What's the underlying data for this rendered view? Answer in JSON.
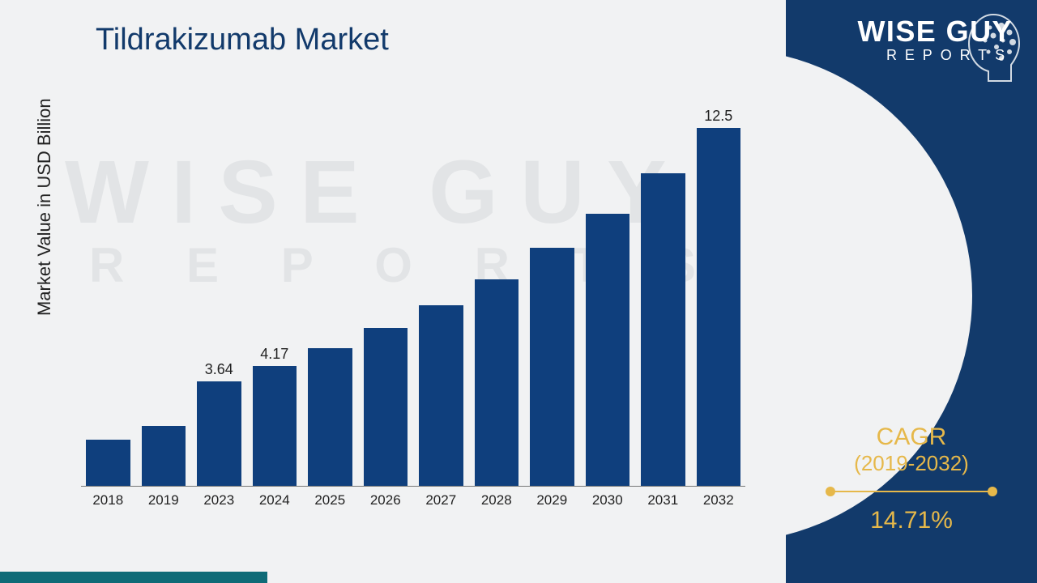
{
  "title": "Tildrakizumab Market",
  "logo": {
    "line1": "WISE GUY",
    "line2": "REPORTS"
  },
  "watermark": {
    "line1": "WISE GUY",
    "line2": "R E P O R T S"
  },
  "cagr": {
    "label": "CAGR",
    "period": "(2019-2032)",
    "value": "14.71%",
    "color": "#e6b84a"
  },
  "colors": {
    "background": "#f1f2f3",
    "panel": "#123a6b",
    "bar": "#0f3f7d",
    "bottom_strip": "#0e6b77",
    "title_text": "#123a6b",
    "axis_text": "#222222"
  },
  "chart": {
    "type": "bar",
    "ylabel": "Market Value in USD Billion",
    "bar_color": "#0f3f7d",
    "background_color": "#f1f2f3",
    "ylim": [
      0,
      13
    ],
    "bar_width": 0.78,
    "label_fontsize": 18,
    "tick_fontsize": 17,
    "ylabel_fontsize": 22,
    "categories": [
      "2018",
      "2019",
      "2023",
      "2024",
      "2025",
      "2026",
      "2027",
      "2028",
      "2029",
      "2030",
      "2031",
      "2032"
    ],
    "values": [
      1.6,
      2.1,
      3.64,
      4.17,
      4.8,
      5.5,
      6.3,
      7.2,
      8.3,
      9.5,
      10.9,
      12.5
    ],
    "value_labels": [
      "",
      "",
      "3.64",
      "4.17",
      "",
      "",
      "",
      "",
      "",
      "",
      "",
      "12.5"
    ]
  }
}
